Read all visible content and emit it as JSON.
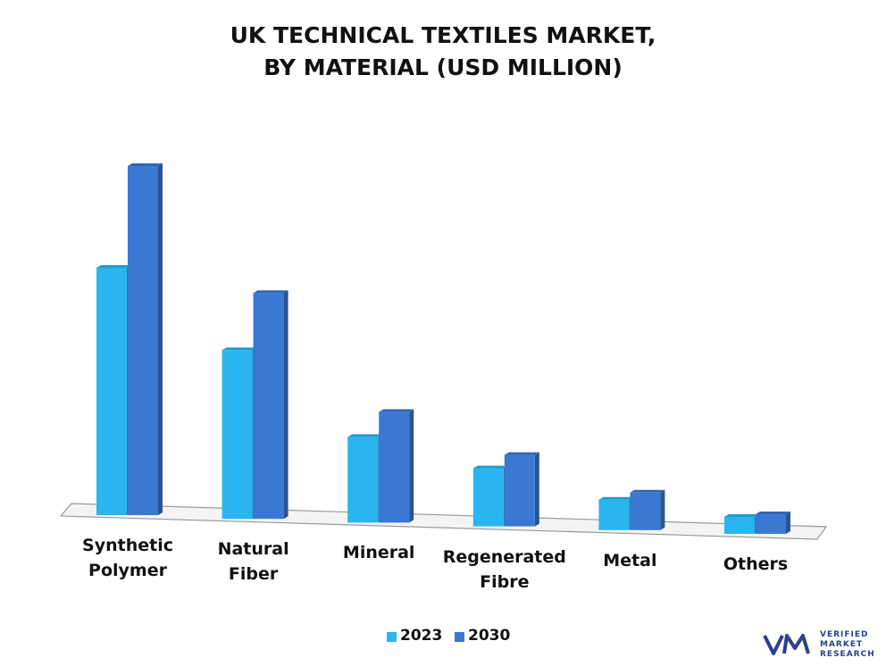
{
  "chart_data": {
    "type": "bar3d",
    "title": "UK TECHNICAL TEXTILES MARKET,\nBY MATERIAL (USD MILLION)",
    "categories": [
      "Synthetic\nPolymer",
      "Natural Fiber",
      "Mineral",
      "Regenerated\nFibre",
      "Metal",
      "Others"
    ],
    "series": [
      {
        "name": "2023",
        "color": "#29b5f0",
        "values": [
          277,
          189,
          96,
          65,
          34,
          19
        ]
      },
      {
        "name": "2030",
        "color": "#3a78d4",
        "values": [
          391,
          253,
          124,
          80,
          42,
          22
        ]
      }
    ]
  },
  "logo": {
    "line1": "VERIFIED",
    "line2": "MARKET",
    "line3": "RESEARCH"
  }
}
